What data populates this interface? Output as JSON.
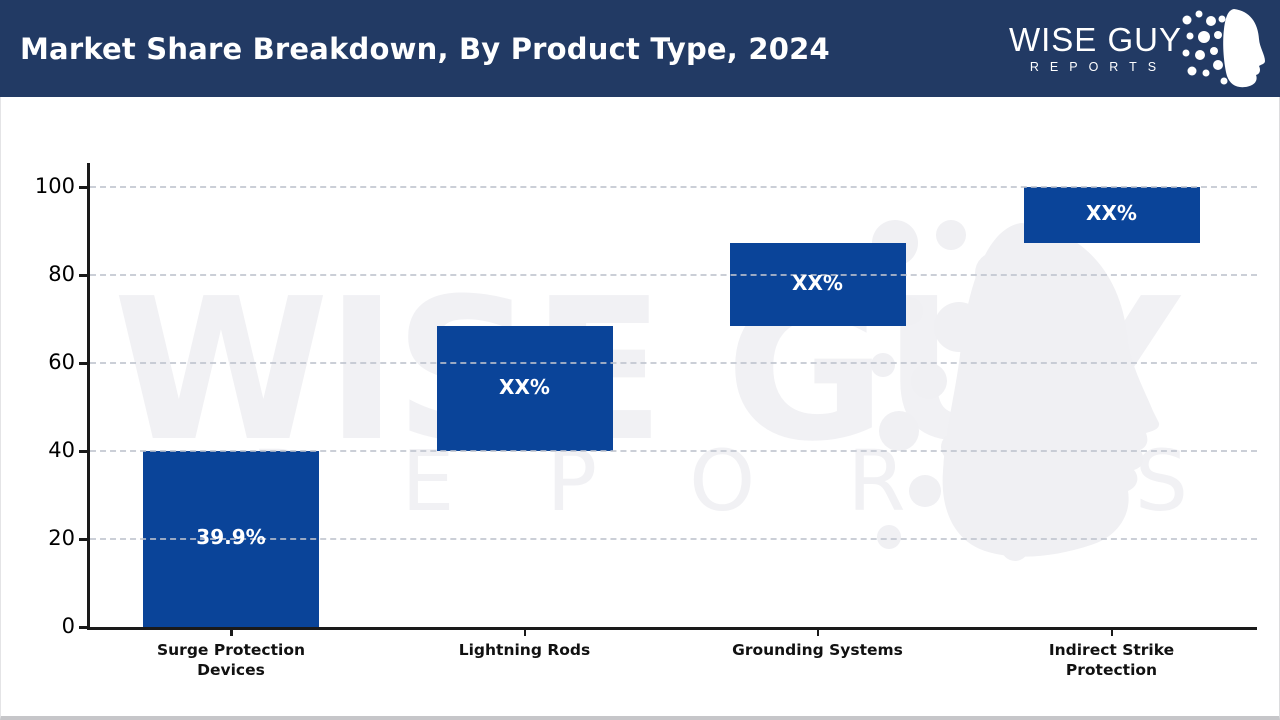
{
  "header": {
    "title": "Market Share Breakdown, By Product Type, 2024",
    "logo": {
      "line1": "WISE GUY",
      "line2": "REPORTS"
    }
  },
  "watermark": {
    "line1": "WISE GUY",
    "line2": "REPORTS"
  },
  "colors": {
    "header_bg": "#223a64",
    "bar": "#0a4499",
    "axis": "#1a1a1a",
    "grid_dash": "#c3c7cf",
    "bar_label_text": "#ffffff",
    "watermark": "#f1f1f4"
  },
  "chart_data": {
    "type": "bar",
    "subtype": "waterfall",
    "title": "Market Share Breakdown, By Product Type, 2024",
    "xlabel": "",
    "ylabel": "",
    "ylim": [
      0,
      100
    ],
    "yticks": [
      0,
      20,
      40,
      60,
      80,
      100
    ],
    "grid": "horizontal-dashed",
    "legend": "none",
    "categories": [
      "Surge Protection Devices",
      "Lightning Rods",
      "Grounding Systems",
      "Indirect Strike Protection"
    ],
    "segments": [
      {
        "category": "Surge Protection Devices",
        "start": 0,
        "end": 39.9,
        "increment": 39.9,
        "label": "39.9%"
      },
      {
        "category": "Lightning Rods",
        "start": 39.9,
        "end": 68.3,
        "increment": 28.4,
        "label": "XX%"
      },
      {
        "category": "Grounding Systems",
        "start": 68.3,
        "end": 87.2,
        "increment": 18.9,
        "label": "XX%"
      },
      {
        "category": "Indirect Strike Protection",
        "start": 87.2,
        "end": 100,
        "increment": 12.8,
        "label": "XX%"
      }
    ]
  }
}
